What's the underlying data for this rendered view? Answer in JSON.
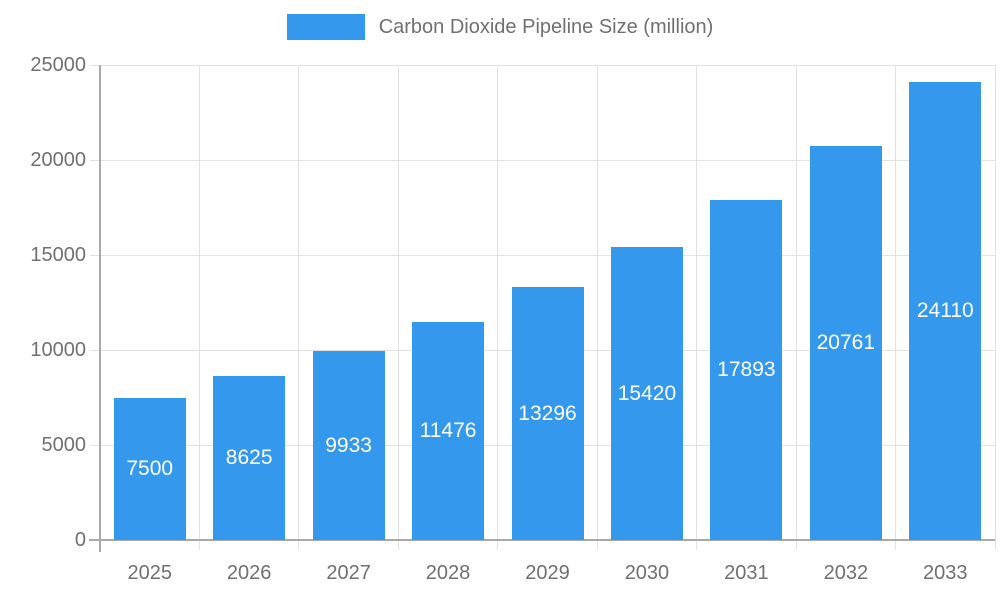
{
  "legend": {
    "label": "Carbon Dioxide Pipeline Size (million)"
  },
  "chart_data": {
    "type": "bar",
    "title": "Carbon Dioxide Pipeline Size (million)",
    "series_name": "Carbon Dioxide Pipeline Size (million)",
    "categories": [
      "2025",
      "2026",
      "2027",
      "2028",
      "2029",
      "2030",
      "2031",
      "2032",
      "2033"
    ],
    "values": [
      7500,
      8625,
      9933,
      11476,
      13296,
      15420,
      17893,
      20761,
      24110
    ],
    "value_labels": [
      "7500",
      "8625",
      "9933",
      "11476",
      "13296",
      "15420",
      "17893",
      "20761",
      "24110"
    ],
    "xlabel": "",
    "ylabel": "",
    "ylim": [
      0,
      25000
    ],
    "yticks": [
      0,
      5000,
      10000,
      15000,
      20000,
      25000
    ],
    "grid": true,
    "legend_position": "top",
    "colors": {
      "bar": "#3498EC",
      "value_label": "#FFFFFF",
      "axis_text": "#707070",
      "gridline": "#E2E2E2",
      "axis_line": "#A9A9A9",
      "background": "#FFFFFF"
    }
  }
}
